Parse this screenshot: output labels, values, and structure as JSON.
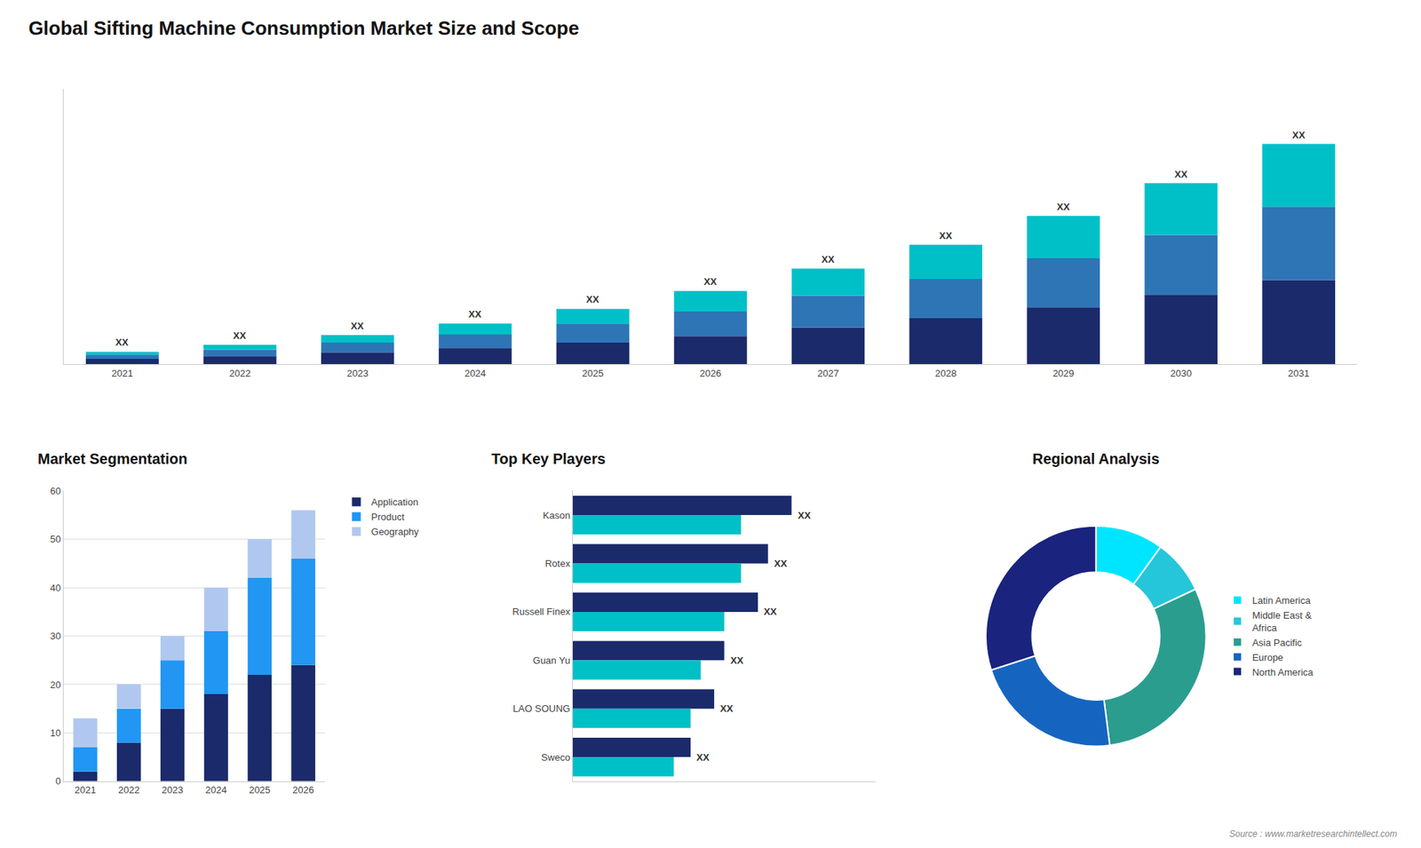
{
  "title": "Global Sifting Machine Consumption Market Size and Scope",
  "annotations": [
    "Source : www.marketresearchintellect.com"
  ],
  "chart_data": [
    {
      "type": "bar",
      "stacked": true,
      "categories": [
        "2021",
        "2022",
        "2023",
        "2024",
        "2025",
        "2026",
        "2027",
        "2028",
        "2029",
        "2030",
        "2031"
      ],
      "series": [
        {
          "color": "#1b2a6b",
          "values": [
            1.0,
            1.5,
            2.2,
            3.0,
            4.0,
            5.2,
            6.8,
            8.5,
            10.5,
            12.8,
            15.5
          ]
        },
        {
          "color": "#2e75b6",
          "values": [
            0.8,
            1.2,
            1.8,
            2.5,
            3.4,
            4.5,
            5.8,
            7.2,
            9.0,
            11.0,
            13.5
          ]
        },
        {
          "color": "#00c0c7",
          "values": [
            0.5,
            0.9,
            1.4,
            2.0,
            2.8,
            3.8,
            5.0,
            6.3,
            7.8,
            9.5,
            11.5
          ]
        }
      ],
      "ylim": [
        0,
        50.625
      ],
      "tick_labels": "x",
      "grid": false,
      "annotations": [
        {
          "category": "2021",
          "text": "XX"
        },
        {
          "category": "2022",
          "text": "XX"
        },
        {
          "category": "2023",
          "text": "XX"
        },
        {
          "category": "2024",
          "text": "XX"
        },
        {
          "category": "2025",
          "text": "XX"
        },
        {
          "category": "2026",
          "text": "XX"
        },
        {
          "category": "2027",
          "text": "XX"
        },
        {
          "category": "2028",
          "text": "XX"
        },
        {
          "category": "2029",
          "text": "XX"
        },
        {
          "category": "2030",
          "text": "XX"
        },
        {
          "category": "2031",
          "text": "XX"
        }
      ]
    },
    {
      "type": "bar",
      "stacked": true,
      "title": "Market Segmentation",
      "categories": [
        "2021",
        "2022",
        "2023",
        "2024",
        "2025",
        "2026"
      ],
      "series": [
        {
          "name": "Application",
          "color": "#1b2a6b",
          "values": [
            2,
            8,
            15,
            18,
            22,
            24
          ]
        },
        {
          "name": "Product",
          "color": "#2196f3",
          "values": [
            5,
            7,
            10,
            13,
            20,
            22
          ]
        },
        {
          "name": "Geography",
          "color": "#b0c8f0",
          "values": [
            6,
            5,
            5,
            9,
            8,
            10
          ]
        }
      ],
      "ylim": [
        0,
        60
      ],
      "yticks": [
        0,
        10,
        20,
        30,
        40,
        50,
        60
      ],
      "grid": true,
      "legend": "upper right"
    },
    {
      "type": "bar",
      "orientation": "horizontal",
      "title": "Top Key Players",
      "categories": [
        "Kason",
        "Rotex",
        "Russell Finex",
        "Guan Yu",
        "LAO SOUNG",
        "Sweco"
      ],
      "series": [
        {
          "color": "#1b2a6b",
          "values": [
            6.5,
            5.8,
            5.5,
            4.5,
            4.2,
            3.5
          ]
        },
        {
          "color": "#00c0c7",
          "values": [
            5.0,
            5.0,
            4.5,
            3.8,
            3.5,
            3.0
          ]
        }
      ],
      "xlim": [
        0,
        9.0
      ],
      "tick_labels": "y",
      "grid": false,
      "annotations": [
        {
          "category": "Kason",
          "text": "XX"
        },
        {
          "category": "Rotex",
          "text": "XX"
        },
        {
          "category": "Russell Finex",
          "text": "XX"
        },
        {
          "category": "Guan Yu",
          "text": "XX"
        },
        {
          "category": "LAO SOUNG",
          "text": "XX"
        },
        {
          "category": "Sweco",
          "text": "XX"
        }
      ]
    },
    {
      "type": "pie",
      "title": "Regional Analysis",
      "categories": [
        "Latin America",
        "Middle East &\nAfrica",
        "Asia Pacific",
        "Europe",
        "North America"
      ],
      "values": [
        10,
        8,
        30,
        22,
        30
      ],
      "colors": [
        "#00e5ff",
        "#26c6da",
        "#2a9d8f",
        "#1565c0",
        "#1a237e"
      ],
      "legend": "right"
    }
  ]
}
